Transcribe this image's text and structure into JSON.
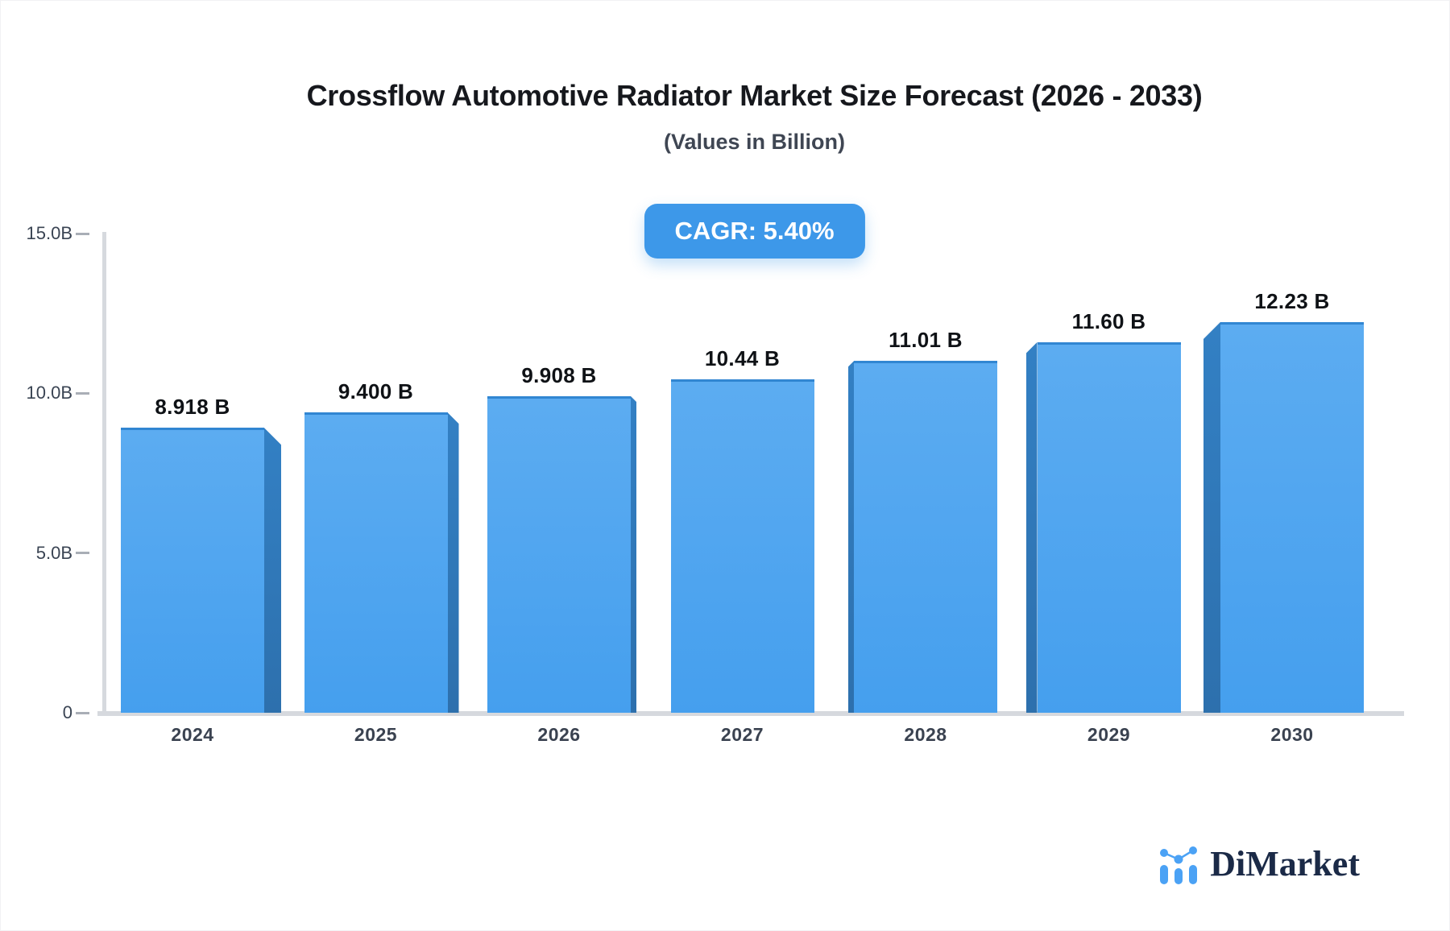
{
  "header": {
    "title": "Crossflow Automotive Radiator Market Size Forecast (2026 - 2033)",
    "subtitle": "(Values in Billion)",
    "cagr_label": "CAGR: 5.40%"
  },
  "chart_data": {
    "type": "bar",
    "title": "Crossflow Automotive Radiator Market Size Forecast (2026 - 2033)",
    "subtitle": "(Values in Billion)",
    "unit": "Billion",
    "cagr": "5.40%",
    "categories": [
      "2024",
      "2025",
      "2026",
      "2027",
      "2028",
      "2029",
      "2030"
    ],
    "values": [
      8.918,
      9.4,
      9.908,
      10.44,
      11.01,
      11.6,
      12.23
    ],
    "value_labels": [
      "8.918 B",
      "9.400 B",
      "9.908 B",
      "10.44 B",
      "11.01 B",
      "11.60 B",
      "12.23 B"
    ],
    "y_ticks": [
      {
        "label": "15.0B",
        "value": 15
      },
      {
        "label": "10.0B",
        "value": 10
      },
      {
        "label": "5.0B",
        "value": 5
      },
      {
        "label": "0",
        "value": 0
      }
    ],
    "ylim": [
      0,
      15
    ],
    "xlabel": "",
    "ylabel": "",
    "grid": false,
    "legend_position": "none",
    "colors": {
      "bar_face": "#4aa3ee",
      "bar_side": "#2e76b4",
      "badge": "#3d98e9",
      "axis": "#d6d9de",
      "title_text": "#16181d",
      "subtitle_text": "#3f4653"
    }
  },
  "branding": {
    "logo_text": "DiMarket",
    "logo_icon": "mini-bar-chart-icon",
    "logo_text_color": "#1b2a47",
    "logo_icon_color": "#4ba2f5"
  }
}
